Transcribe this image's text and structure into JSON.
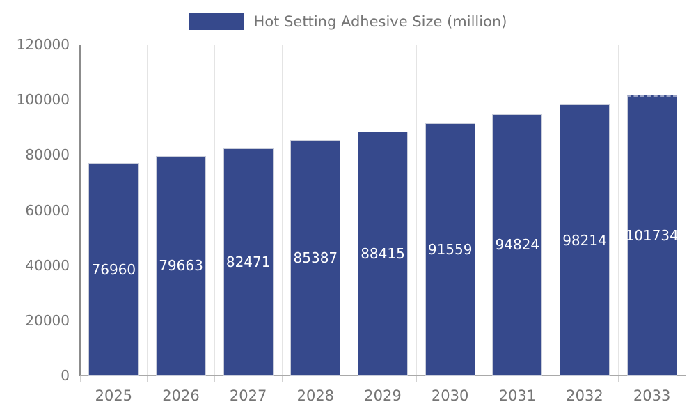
{
  "chart_data": {
    "type": "bar",
    "title": "",
    "legend": {
      "label": "Hot Setting Adhesive Size (million)",
      "position": "top-center"
    },
    "categories": [
      "2025",
      "2026",
      "2027",
      "2028",
      "2029",
      "2030",
      "2031",
      "2032",
      "2033"
    ],
    "values": [
      76960,
      79663,
      82471,
      85387,
      88415,
      91559,
      94824,
      98214,
      101734
    ],
    "bar_value_labels": [
      "76960",
      "79663",
      "82471",
      "85387",
      "88415",
      "91559",
      "94824",
      "98214",
      "101734"
    ],
    "xlabel": "",
    "ylabel": "",
    "ylim": [
      0,
      120000
    ],
    "yticks": [
      0,
      20000,
      40000,
      60000,
      80000,
      100000,
      120000
    ],
    "grid": "horizontal and vertical boundary gridlines on",
    "last_bar_dashed_top": true,
    "colors": {
      "bar": "#36498c",
      "bar_edge": "#c9cdda",
      "bar_dash": "#9aa3c6",
      "bar_value_text": "#ffffff",
      "axis_text": "#757575",
      "gridline": "#e4e4e4",
      "y_axis_line": "#8c8c8c",
      "x_axis_line": "#a9a9a9",
      "tick": "#d2d2d2",
      "background": "#ffffff"
    }
  }
}
